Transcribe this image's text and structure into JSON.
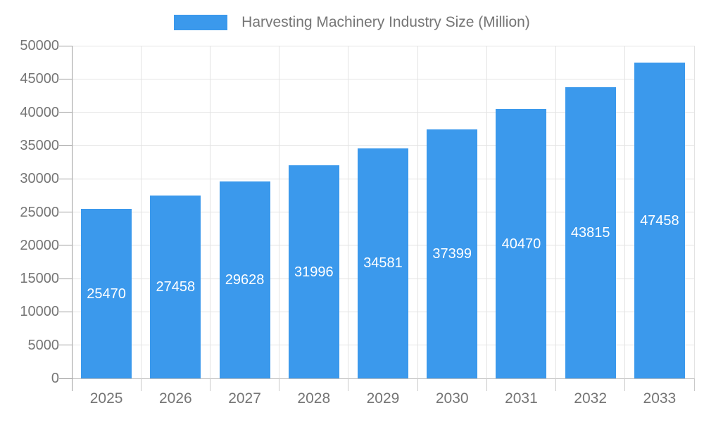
{
  "legend": {
    "label": "Harvesting Machinery Industry Size (Million)"
  },
  "chart_data": {
    "type": "bar",
    "title": "Harvesting Machinery Industry Size (Million)",
    "categories": [
      "2025",
      "2026",
      "2027",
      "2028",
      "2029",
      "2030",
      "2031",
      "2032",
      "2033"
    ],
    "values": [
      25470,
      27458,
      29628,
      31996,
      34581,
      37399,
      40470,
      43815,
      47458
    ],
    "value_labels": [
      "25470",
      "27458",
      "29628",
      "31996",
      "34581",
      "37399",
      "40470",
      "43815",
      "47458"
    ],
    "xlabel": "",
    "ylabel": "",
    "ylim": [
      0,
      50000
    ],
    "yticks": [
      0,
      5000,
      10000,
      15000,
      20000,
      25000,
      30000,
      35000,
      40000,
      45000,
      50000
    ],
    "grid": true,
    "legend_position": "top",
    "colors": {
      "bar": "#3B99EC",
      "value_label": "#FFFFFF",
      "axis_text": "#757575",
      "gridline": "#E3E3E3",
      "baseline": "#BDBDBD",
      "axis_line": "#9E9E9E",
      "tick": "#C9C9C9"
    }
  }
}
